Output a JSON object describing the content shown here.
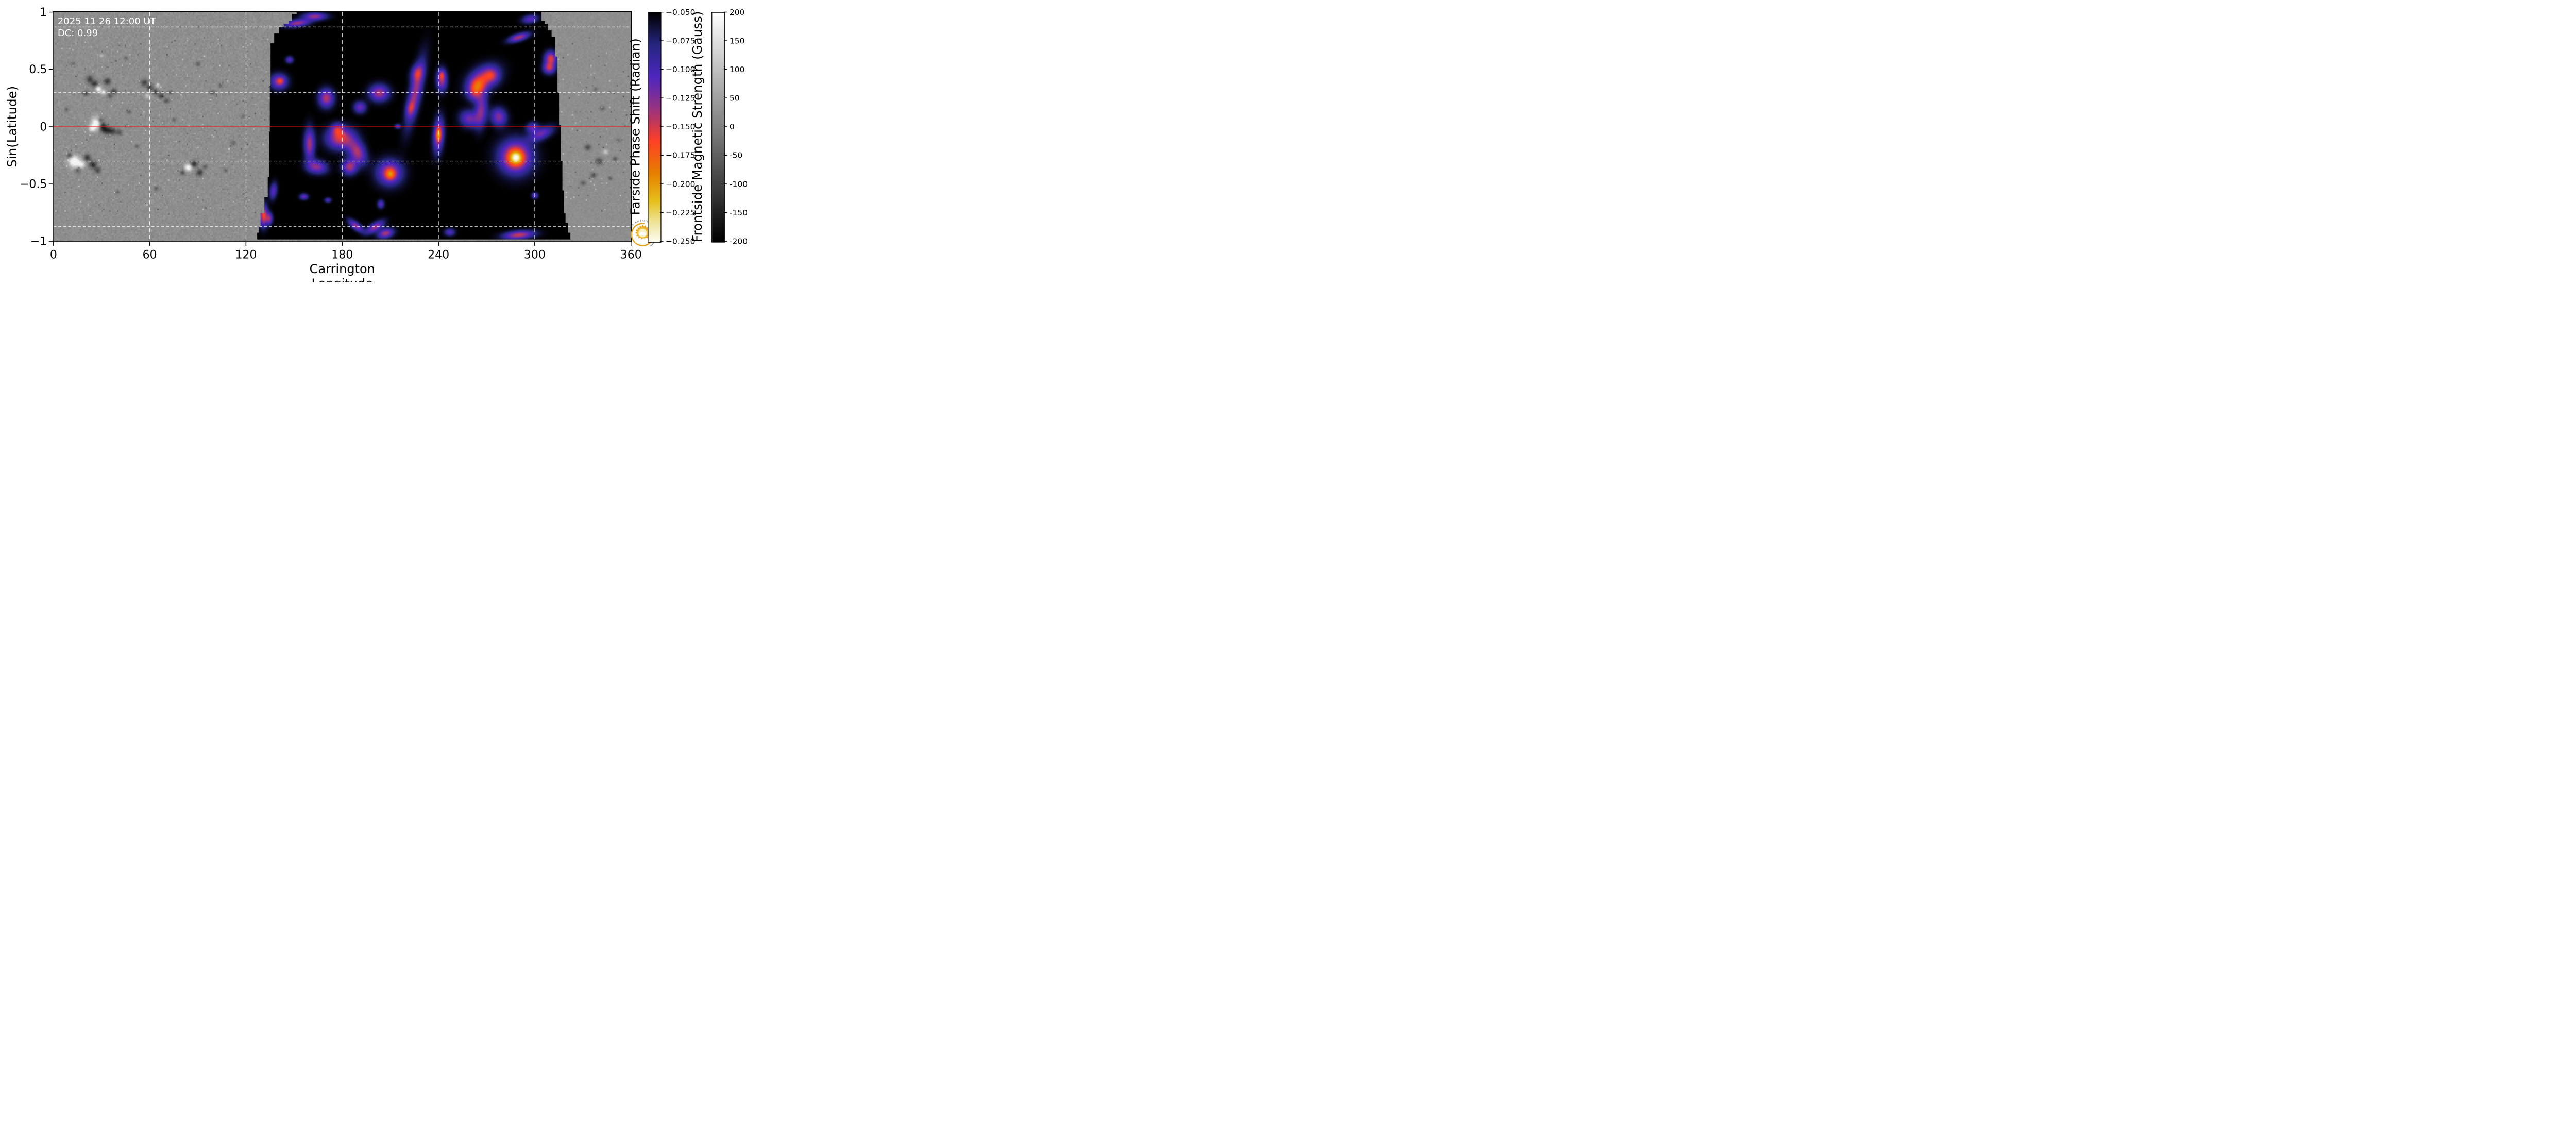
{
  "annotation": {
    "line1": "2025 11 26 12:00 UT",
    "line2": "DC: 0.99",
    "color": "#ffffff"
  },
  "axes": {
    "xlabel": "Carrington Longitude",
    "ylabel": "Sin(Latitude)",
    "x_ticks": [
      {
        "v": 0,
        "label": "0"
      },
      {
        "v": 60,
        "label": "60"
      },
      {
        "v": 120,
        "label": "120"
      },
      {
        "v": 180,
        "label": "180"
      },
      {
        "v": 240,
        "label": "240"
      },
      {
        "v": 300,
        "label": "300"
      },
      {
        "v": 360,
        "label": "360"
      }
    ],
    "y_ticks": [
      {
        "v": 1,
        "label": "1"
      },
      {
        "v": 0.5,
        "label": "0.5"
      },
      {
        "v": 0,
        "label": "0"
      },
      {
        "v": -0.5,
        "label": "−0.5"
      },
      {
        "v": -1,
        "label": "−1"
      }
    ]
  },
  "colorbars": [
    {
      "title": "Farside Phase Shift (Radian)",
      "ticks": [
        "−0.050",
        "−0.075",
        "−0.100",
        "−0.125",
        "−0.150",
        "−0.175",
        "−0.200",
        "−0.225",
        "−0.250"
      ],
      "range": [
        -0.05,
        -0.25
      ]
    },
    {
      "title": "Frontside Magnetic Strength (Gauss)",
      "ticks": [
        "200",
        "150",
        "100",
        "50",
        "0",
        "-50",
        "-100",
        "-150",
        "-200"
      ],
      "range": [
        200,
        -200
      ]
    }
  ],
  "logo": {
    "text": "NISP",
    "ring_text": "NSO INTEGRATED SYNOPTIC PROGRAM",
    "gold": "#E8A31E"
  },
  "chart_data": {
    "type": "heatmap",
    "map_date": "2025 11 26 12:00 UT",
    "duty_cycle": 0.99,
    "xlabel": "Carrington Longitude",
    "ylabel": "Sin(Latitude)",
    "xlim": [
      0,
      360
    ],
    "ylim": [
      -1,
      1
    ],
    "x_gridlines": [
      60,
      120,
      180,
      240,
      300
    ],
    "y_gridlines": [
      0.87,
      0.3,
      -0.3,
      -0.87
    ],
    "equator": 0,
    "equator_color": "#ec1212",
    "gray_base": 142,
    "colormap_stops": [
      [
        0,
        "#000000"
      ],
      [
        0.14,
        "#262680"
      ],
      [
        0.28,
        "#4D26BF"
      ],
      [
        0.42,
        "#993380"
      ],
      [
        0.56,
        "#FF4026"
      ],
      [
        0.7,
        "#E68000"
      ],
      [
        0.82,
        "#E6BF1A"
      ],
      [
        0.92,
        "#EFE6A0"
      ],
      [
        1,
        "#FFFDF0"
      ]
    ],
    "farside_boundary": {
      "step": 0.0285,
      "bottom_cut": -0.985,
      "left": [
        [
          -0.93,
          127
        ],
        [
          -0.86,
          128
        ],
        [
          -0.75,
          129
        ],
        [
          -0.62,
          131.5
        ],
        [
          -0.45,
          133.5
        ],
        [
          -0.05,
          134.4
        ],
        [
          0.35,
          134.9
        ],
        [
          0.72,
          135.4
        ],
        [
          0.8,
          137.6
        ],
        [
          0.87,
          140.5
        ],
        [
          0.905,
          143.5
        ],
        [
          0.94,
          146.5
        ],
        [
          0.97,
          148.5
        ],
        [
          1.2,
          151.5
        ]
      ],
      "right": [
        [
          -0.97,
          324
        ],
        [
          -0.92,
          322.3
        ],
        [
          -0.85,
          320.6
        ],
        [
          -0.75,
          319.2
        ],
        [
          -0.55,
          318.2
        ],
        [
          -0.3,
          317.2
        ],
        [
          0,
          316.2
        ],
        [
          0.3,
          315.2
        ],
        [
          0.6,
          314.2
        ],
        [
          0.78,
          312.8
        ],
        [
          0.85,
          310.5
        ],
        [
          0.9,
          308.2
        ],
        [
          0.94,
          306.2
        ],
        [
          1.2,
          304.2
        ]
      ]
    },
    "farside_blobs": [
      [
        163,
        0.965,
        5,
        0.022,
        0,
        0.4
      ],
      [
        152,
        0.905,
        5.5,
        0.022,
        -8,
        0.42
      ],
      [
        147,
        0.585,
        1.6,
        0.02,
        0,
        0.3
      ],
      [
        140.5,
        0.395,
        3.6,
        0.045,
        0,
        0.42
      ],
      [
        141.5,
        0.4,
        1.5,
        0.02,
        0,
        0.17
      ],
      [
        170,
        0.25,
        3.2,
        0.055,
        0,
        0.46
      ],
      [
        191,
        0.17,
        2.6,
        0.035,
        0,
        0.34
      ],
      [
        203,
        0.295,
        4.2,
        0.05,
        0,
        0.44
      ],
      [
        214.5,
        0.005,
        1.2,
        0.014,
        0,
        0.3
      ],
      [
        225.5,
        0.3,
        2.6,
        0.2,
        12,
        0.42
      ],
      [
        226.5,
        0.47,
        2.6,
        0.05,
        20,
        0.28
      ],
      [
        222.5,
        0.16,
        1.8,
        0.045,
        10,
        0.22
      ],
      [
        242,
        0.41,
        2.2,
        0.065,
        0,
        0.45
      ],
      [
        242,
        0.455,
        1.2,
        0.025,
        0,
        0.2
      ],
      [
        268,
        0.42,
        7,
        0.065,
        -33,
        0.5
      ],
      [
        264,
        0.345,
        3.2,
        0.05,
        -20,
        0.32
      ],
      [
        273.5,
        0.45,
        2.8,
        0.045,
        -30,
        0.2
      ],
      [
        266.5,
        0.14,
        2.6,
        0.1,
        5,
        0.38
      ],
      [
        259,
        0.07,
        4,
        0.05,
        25,
        0.34
      ],
      [
        277.5,
        0.085,
        3.4,
        0.055,
        -15,
        0.38
      ],
      [
        262,
        0.28,
        3,
        0.05,
        -40,
        0.25
      ],
      [
        240,
        -0.075,
        2.2,
        0.105,
        4,
        0.46
      ],
      [
        240,
        -0.065,
        1.2,
        0.04,
        0,
        0.34
      ],
      [
        159.5,
        -0.15,
        2.2,
        0.095,
        0,
        0.44
      ],
      [
        179,
        -0.1,
        6,
        0.065,
        0,
        0.52
      ],
      [
        189.5,
        -0.225,
        3.4,
        0.075,
        -25,
        0.44
      ],
      [
        164,
        -0.35,
        4.4,
        0.04,
        10,
        0.4
      ],
      [
        184.5,
        -0.35,
        3.2,
        0.045,
        0,
        0.44
      ],
      [
        177,
        -0.02,
        2.6,
        0.035,
        0,
        0.3
      ],
      [
        209.5,
        -0.4,
        5.5,
        0.075,
        0,
        0.46
      ],
      [
        210,
        -0.415,
        2.2,
        0.035,
        0,
        0.3
      ],
      [
        288,
        -0.265,
        7,
        0.1,
        -8,
        0.55
      ],
      [
        288,
        -0.27,
        3.8,
        0.055,
        -8,
        0.3
      ],
      [
        288.5,
        -0.27,
        2.2,
        0.032,
        -8,
        0.17
      ],
      [
        304,
        -0.06,
        5.5,
        0.035,
        -25,
        0.34
      ],
      [
        298.5,
        -0.005,
        2.6,
        0.03,
        -15,
        0.3
      ],
      [
        310,
        0.6,
        2.6,
        0.04,
        0,
        0.5
      ],
      [
        309,
        0.515,
        2.6,
        0.035,
        0,
        0.46
      ],
      [
        290,
        0.78,
        4.6,
        0.022,
        -18,
        0.44
      ],
      [
        297,
        0.94,
        3.4,
        0.025,
        -10,
        0.3
      ],
      [
        188.5,
        -0.865,
        3.8,
        0.022,
        38,
        0.4
      ],
      [
        200.5,
        -0.875,
        4.2,
        0.025,
        -32,
        0.42
      ],
      [
        207,
        -0.93,
        3.4,
        0.028,
        -15,
        0.44
      ],
      [
        247,
        -0.92,
        2.2,
        0.022,
        0,
        0.28
      ],
      [
        290,
        -0.945,
        6.5,
        0.025,
        -5,
        0.48
      ],
      [
        130.8,
        -0.775,
        1.8,
        0.065,
        0,
        0.55
      ],
      [
        134.5,
        -0.8,
        1.4,
        0.035,
        0,
        0.38
      ],
      [
        156,
        -0.61,
        1.8,
        0.018,
        0,
        0.32
      ],
      [
        171,
        -0.64,
        1.4,
        0.015,
        0,
        0.26
      ],
      [
        204,
        -0.675,
        1.4,
        0.025,
        0,
        0.3
      ],
      [
        300,
        -0.6,
        1.4,
        0.018,
        0,
        0.3
      ],
      [
        137,
        -0.56,
        1.6,
        0.05,
        8,
        0.3
      ]
    ],
    "frontside_features": [
      [
        26.5,
        0.03,
        2.2,
        0.035,
        0.85
      ],
      [
        24,
        -0.015,
        1.4,
        0.02,
        0.6
      ],
      [
        30.5,
        0,
        1.6,
        0.03,
        -0.75
      ],
      [
        33.5,
        -0.03,
        1.8,
        0.025,
        -0.65
      ],
      [
        37,
        -0.04,
        1.6,
        0.02,
        -0.5
      ],
      [
        41,
        -0.05,
        1.3,
        0.018,
        -0.4
      ],
      [
        29,
        0.06,
        1.2,
        0.015,
        -0.45
      ],
      [
        22.5,
        0.415,
        1.5,
        0.022,
        -0.55
      ],
      [
        25.5,
        0.375,
        1.6,
        0.02,
        -0.6
      ],
      [
        28,
        0.33,
        1.3,
        0.018,
        0.75
      ],
      [
        31,
        0.3,
        1.2,
        0.016,
        0.5
      ],
      [
        33.5,
        0.395,
        1.5,
        0.02,
        -0.6
      ],
      [
        37.5,
        0.31,
        1.4,
        0.018,
        -0.5
      ],
      [
        20,
        0.29,
        1.2,
        0.016,
        -0.4
      ],
      [
        35,
        0.27,
        1.1,
        0.014,
        -0.35
      ],
      [
        56.5,
        0.385,
        1.5,
        0.02,
        -0.5
      ],
      [
        60,
        0.345,
        1.4,
        0.018,
        -0.55
      ],
      [
        63.5,
        0.305,
        1.3,
        0.018,
        -0.5
      ],
      [
        67,
        0.27,
        1.4,
        0.018,
        -0.45
      ],
      [
        70.5,
        0.225,
        1.3,
        0.016,
        -0.4
      ],
      [
        58.5,
        0.27,
        1.1,
        0.015,
        0.4
      ],
      [
        65,
        0.36,
        1,
        0.013,
        0.35
      ],
      [
        73,
        0.3,
        1,
        0.013,
        -0.35
      ],
      [
        13,
        -0.305,
        2.4,
        0.035,
        0.95
      ],
      [
        17.5,
        -0.33,
        1.5,
        0.022,
        0.6
      ],
      [
        21,
        -0.27,
        1.5,
        0.02,
        -0.6
      ],
      [
        24.5,
        -0.33,
        1.6,
        0.022,
        -0.7
      ],
      [
        27.5,
        -0.38,
        1.4,
        0.018,
        -0.5
      ],
      [
        10,
        -0.25,
        1.2,
        0.016,
        -0.45
      ],
      [
        15,
        -0.38,
        1.3,
        0.016,
        -0.4
      ],
      [
        84,
        -0.355,
        1.6,
        0.022,
        0.8
      ],
      [
        87.5,
        -0.325,
        1.5,
        0.02,
        -0.65
      ],
      [
        91,
        -0.4,
        1.5,
        0.02,
        -0.55
      ],
      [
        80.5,
        -0.4,
        1.2,
        0.016,
        -0.4
      ],
      [
        94.5,
        -0.35,
        1.1,
        0.014,
        -0.35
      ],
      [
        47,
        0.13,
        1,
        0.013,
        -0.3
      ],
      [
        99,
        0.3,
        1.2,
        0.015,
        -0.35
      ],
      [
        104,
        0.36,
        1,
        0.013,
        -0.3
      ],
      [
        112,
        -0.14,
        1.1,
        0.014,
        -0.3
      ],
      [
        118,
        0.09,
        1,
        0.012,
        -0.25
      ],
      [
        90,
        0.55,
        1.2,
        0.013,
        -0.3
      ],
      [
        45,
        0.6,
        1,
        0.012,
        -0.25
      ],
      [
        64,
        -0.54,
        1.2,
        0.014,
        -0.3
      ],
      [
        40,
        -0.57,
        1,
        0.012,
        -0.25
      ],
      [
        8,
        0.15,
        1,
        0.013,
        -0.3
      ],
      [
        52,
        -0.17,
        1,
        0.012,
        -0.3
      ],
      [
        75,
        0.06,
        1,
        0.012,
        -0.3
      ],
      [
        12,
        0.55,
        1,
        0.012,
        -0.25
      ],
      [
        30,
        0.62,
        1,
        0.011,
        0.3
      ],
      [
        107,
        -0.38,
        1,
        0.012,
        -0.28
      ],
      [
        333,
        -0.18,
        1.4,
        0.018,
        -0.45
      ],
      [
        340,
        -0.3,
        1.5,
        0.02,
        -0.5
      ],
      [
        336.5,
        -0.425,
        1.3,
        0.016,
        -0.4
      ],
      [
        344,
        -0.22,
        1.2,
        0.015,
        0.4
      ],
      [
        350,
        -0.28,
        1.1,
        0.013,
        -0.35
      ],
      [
        342,
        0.16,
        1.1,
        0.014,
        -0.35
      ],
      [
        330,
        -0.49,
        1.2,
        0.014,
        -0.35
      ],
      [
        347,
        -0.45,
        1,
        0.012,
        -0.3
      ],
      [
        352,
        -0.12,
        1,
        0.012,
        -0.28
      ],
      [
        338,
        0.33,
        1,
        0.012,
        -0.28
      ]
    ]
  }
}
